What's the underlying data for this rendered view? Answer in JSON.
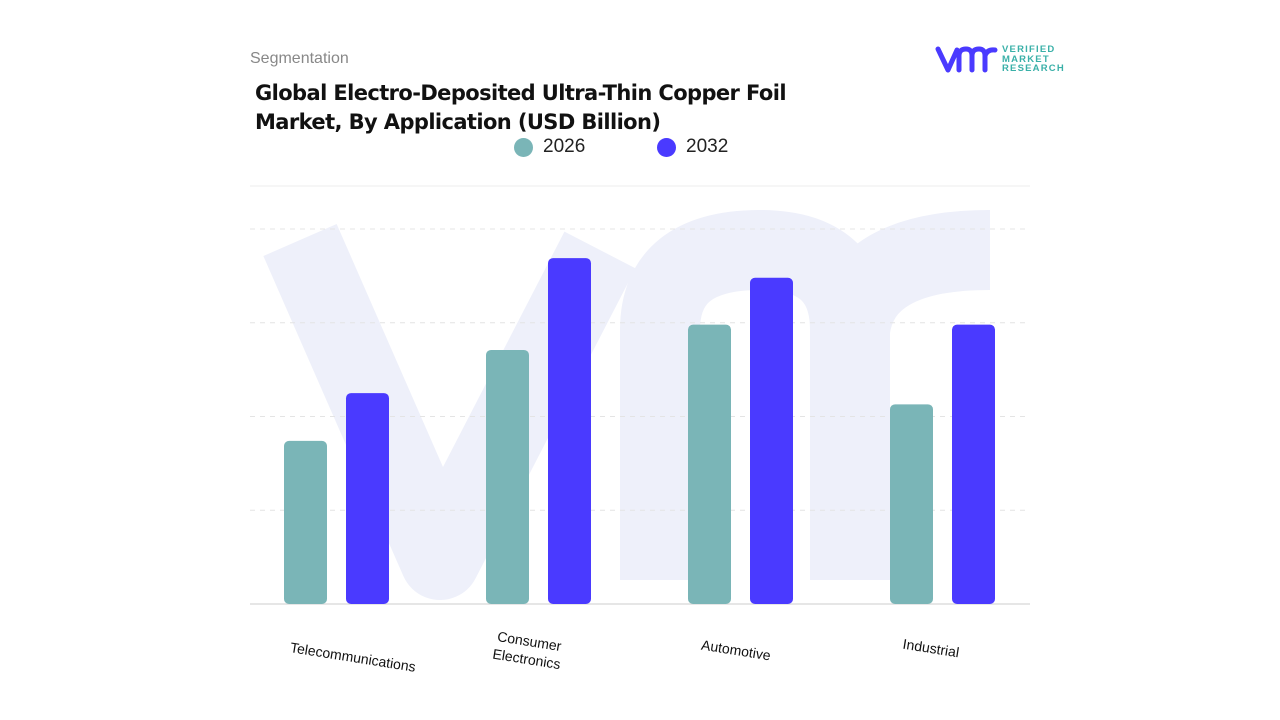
{
  "header": {
    "segment_label": "Segmentation",
    "title": "Global Electro-Deposited Ultra-Thin Copper Foil Market, By Application (USD Billion)"
  },
  "logo": {
    "text_lines": [
      "VERIFIED",
      "MARKET",
      "RESEARCH"
    ],
    "mark": "vmr"
  },
  "colors": {
    "series_2026": "#7ab5b7",
    "series_2032": "#4a3aff",
    "watermark": "#eef0fa",
    "grid": "#e4e4e4"
  },
  "chart_data": {
    "type": "bar",
    "title": "Global Electro-Deposited Ultra-Thin Copper Foil Market, By Application (USD Billion)",
    "categories": [
      "Telecommunications",
      "Consumer Electronics",
      "Automotive",
      "Industrial"
    ],
    "series": [
      {
        "name": "2026",
        "values": [
          1.74,
          2.71,
          2.98,
          2.13
        ]
      },
      {
        "name": "2032",
        "values": [
          2.25,
          3.69,
          3.48,
          2.98
        ]
      }
    ],
    "xlabel": "",
    "ylabel": "",
    "ylim": [
      0,
      4
    ],
    "grid": true,
    "y_tick_labels_shown": false,
    "legend_position": "top-center"
  }
}
